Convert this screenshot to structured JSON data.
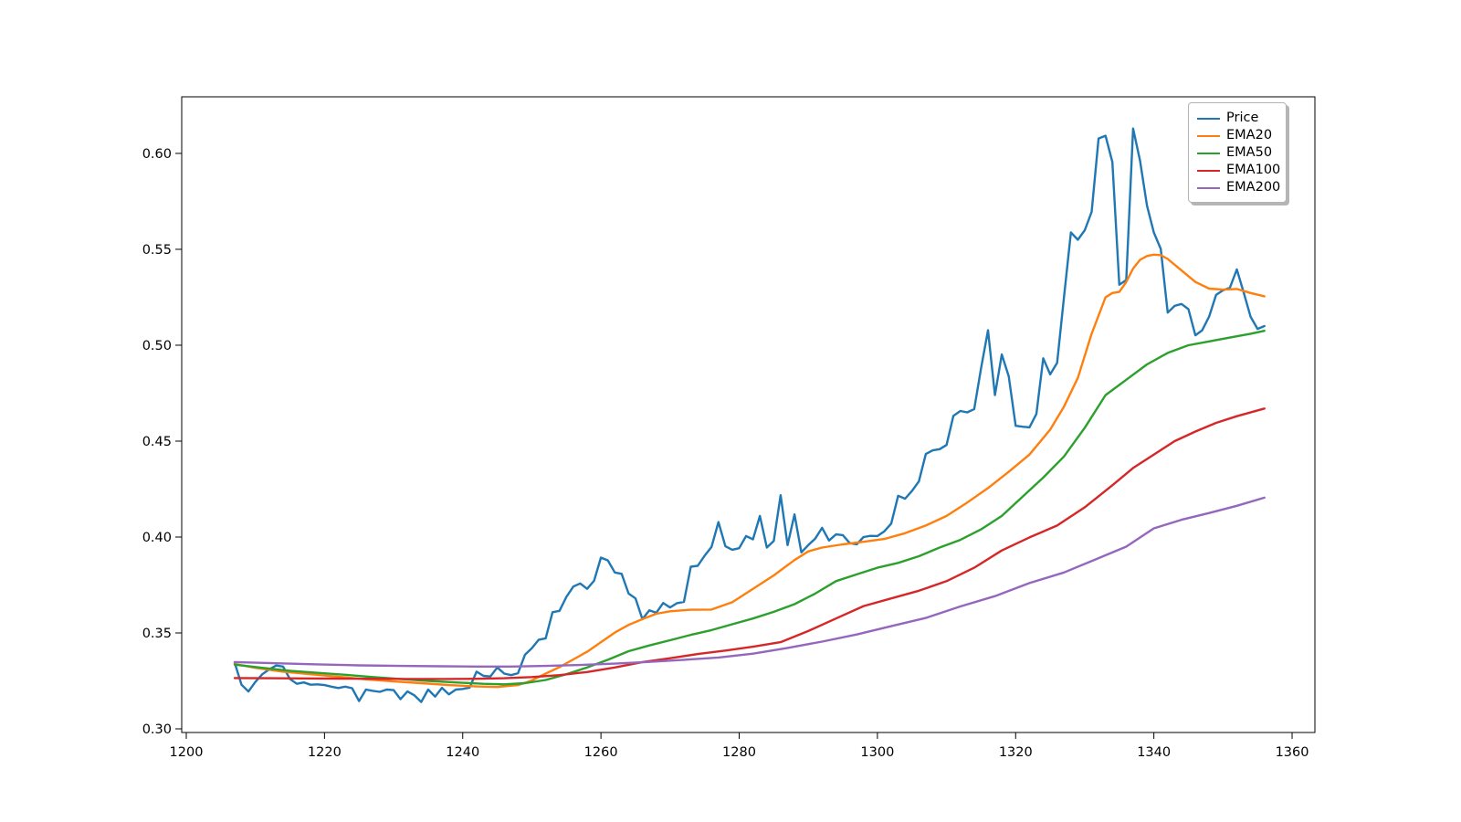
{
  "figure": {
    "background": "#ffffff"
  },
  "legend": {
    "position": "upper right",
    "items": [
      {
        "label": "Price",
        "color": "#1f77b4"
      },
      {
        "label": "EMA20",
        "color": "#ff7f0e"
      },
      {
        "label": "EMA50",
        "color": "#2ca02c"
      },
      {
        "label": "EMA100",
        "color": "#d62728"
      },
      {
        "label": "EMA200",
        "color": "#9467bd"
      }
    ]
  },
  "chart_data": {
    "type": "line",
    "title": "",
    "xlabel": "",
    "ylabel": "",
    "grid": false,
    "legend_position": "upper right",
    "xlim": [
      1199.34,
      1363.3
    ],
    "ylim": [
      0.2981,
      0.6295
    ],
    "x_ticks": [
      1200,
      1220,
      1240,
      1260,
      1280,
      1300,
      1320,
      1340,
      1360
    ],
    "x_tick_labels": [
      "1200",
      "1220",
      "1240",
      "1260",
      "1280",
      "1300",
      "1320",
      "1340",
      "1360"
    ],
    "y_ticks": [
      0.3,
      0.35,
      0.4,
      0.45,
      0.5,
      0.55,
      0.6
    ],
    "y_tick_labels": [
      "0.30",
      "0.35",
      "0.40",
      "0.45",
      "0.50",
      "0.55",
      "0.60"
    ],
    "series": [
      {
        "name": "Price",
        "color": "#1f77b4",
        "x_start": 1207,
        "x_step": 1,
        "y": [
          0.3345,
          0.323,
          0.3195,
          0.3245,
          0.3285,
          0.331,
          0.333,
          0.3325,
          0.326,
          0.3235,
          0.3242,
          0.323,
          0.3232,
          0.3228,
          0.322,
          0.3213,
          0.322,
          0.3212,
          0.3145,
          0.3205,
          0.3198,
          0.3193,
          0.3205,
          0.3202,
          0.3155,
          0.3195,
          0.3175,
          0.314,
          0.3205,
          0.3168,
          0.3214,
          0.318,
          0.3205,
          0.3208,
          0.3215,
          0.3298,
          0.3276,
          0.3273,
          0.332,
          0.3288,
          0.328,
          0.329,
          0.3386,
          0.342,
          0.3465,
          0.3472,
          0.3608,
          0.3615,
          0.3688,
          0.3742,
          0.3758,
          0.373,
          0.3772,
          0.3893,
          0.3878,
          0.3815,
          0.3808,
          0.3705,
          0.368,
          0.3572,
          0.3618,
          0.3605,
          0.3656,
          0.3633,
          0.3655,
          0.3662,
          0.3845,
          0.385,
          0.3903,
          0.3948,
          0.4078,
          0.3952,
          0.3934,
          0.3942,
          0.4005,
          0.3988,
          0.411,
          0.3945,
          0.398,
          0.4218,
          0.3958,
          0.4118,
          0.392,
          0.3958,
          0.3992,
          0.4048,
          0.3982,
          0.4014,
          0.401,
          0.3968,
          0.3962,
          0.4,
          0.4006,
          0.4005,
          0.403,
          0.407,
          0.4215,
          0.42,
          0.424,
          0.429,
          0.4433,
          0.4452,
          0.4458,
          0.448,
          0.4632,
          0.4657,
          0.465,
          0.4667,
          0.488,
          0.5078,
          0.474,
          0.4952,
          0.4838,
          0.458,
          0.4575,
          0.4572,
          0.4642,
          0.4932,
          0.4848,
          0.4908,
          0.525,
          0.5588,
          0.555,
          0.56,
          0.5695,
          0.6078,
          0.6092,
          0.5955,
          0.5315,
          0.534,
          0.613,
          0.5962,
          0.5728,
          0.5588,
          0.5502,
          0.517,
          0.5205,
          0.5215,
          0.5188,
          0.5052,
          0.5078,
          0.515,
          0.5262,
          0.5286,
          0.53,
          0.5395,
          0.5275,
          0.5148,
          0.5085,
          0.51
        ]
      },
      {
        "name": "EMA20",
        "color": "#ff7f0e",
        "x": [
          1207,
          1210,
          1214,
          1218,
          1222,
          1226,
          1230,
          1234,
          1238,
          1242,
          1245,
          1248,
          1250,
          1252,
          1254,
          1256,
          1258,
          1260,
          1262,
          1264,
          1266,
          1268,
          1270,
          1273,
          1276,
          1279,
          1282,
          1285,
          1288,
          1290,
          1292,
          1295,
          1298,
          1301,
          1304,
          1307,
          1310,
          1313,
          1316,
          1319,
          1322,
          1325,
          1327,
          1329,
          1331,
          1333,
          1334,
          1335,
          1336,
          1337,
          1338,
          1339,
          1340,
          1341,
          1342,
          1344,
          1346,
          1348,
          1350,
          1352,
          1354,
          1356
        ],
        "y": [
          0.3338,
          0.3318,
          0.3298,
          0.3285,
          0.3272,
          0.3258,
          0.3247,
          0.3238,
          0.3228,
          0.3221,
          0.3218,
          0.3228,
          0.3252,
          0.3288,
          0.3322,
          0.3362,
          0.3402,
          0.3452,
          0.3502,
          0.3542,
          0.3572,
          0.36,
          0.3613,
          0.3621,
          0.3622,
          0.366,
          0.373,
          0.38,
          0.388,
          0.3925,
          0.3945,
          0.3962,
          0.3975,
          0.399,
          0.402,
          0.406,
          0.411,
          0.418,
          0.4255,
          0.434,
          0.443,
          0.456,
          0.468,
          0.483,
          0.506,
          0.525,
          0.5272,
          0.5278,
          0.533,
          0.54,
          0.5445,
          0.5465,
          0.5472,
          0.547,
          0.545,
          0.539,
          0.533,
          0.5295,
          0.529,
          0.5293,
          0.5272,
          0.5255
        ]
      },
      {
        "name": "EMA50",
        "color": "#2ca02c",
        "x": [
          1207,
          1211,
          1215,
          1219,
          1223,
          1227,
          1231,
          1235,
          1239,
          1243,
          1246,
          1249,
          1252,
          1255,
          1258,
          1261,
          1264,
          1267,
          1270,
          1273,
          1276,
          1279,
          1282,
          1285,
          1288,
          1291,
          1294,
          1297,
          1300,
          1303,
          1306,
          1309,
          1312,
          1315,
          1318,
          1321,
          1324,
          1327,
          1330,
          1333,
          1336,
          1339,
          1342,
          1345,
          1348,
          1351,
          1354,
          1356
        ],
        "y": [
          0.3335,
          0.3318,
          0.3303,
          0.3292,
          0.3282,
          0.327,
          0.326,
          0.325,
          0.3242,
          0.3235,
          0.3232,
          0.3238,
          0.3255,
          0.3285,
          0.332,
          0.336,
          0.3405,
          0.3435,
          0.3462,
          0.349,
          0.3515,
          0.3545,
          0.3575,
          0.361,
          0.365,
          0.3705,
          0.377,
          0.3805,
          0.384,
          0.3865,
          0.39,
          0.3945,
          0.3985,
          0.404,
          0.411,
          0.421,
          0.431,
          0.442,
          0.457,
          0.474,
          0.482,
          0.49,
          0.496,
          0.5,
          0.502,
          0.504,
          0.506,
          0.5075
        ]
      },
      {
        "name": "EMA100",
        "color": "#d62728",
        "x": [
          1207,
          1212,
          1217,
          1222,
          1227,
          1232,
          1237,
          1242,
          1246,
          1250,
          1254,
          1258,
          1262,
          1266,
          1270,
          1274,
          1278,
          1282,
          1286,
          1290,
          1294,
          1298,
          1302,
          1306,
          1310,
          1314,
          1318,
          1322,
          1326,
          1330,
          1334,
          1337,
          1340,
          1343,
          1346,
          1349,
          1352,
          1356
        ],
        "y": [
          0.3265,
          0.3264,
          0.3263,
          0.3262,
          0.3261,
          0.326,
          0.326,
          0.3261,
          0.3264,
          0.327,
          0.328,
          0.3296,
          0.332,
          0.3348,
          0.3368,
          0.339,
          0.3408,
          0.3428,
          0.3452,
          0.351,
          0.3575,
          0.364,
          0.368,
          0.372,
          0.377,
          0.384,
          0.393,
          0.3998,
          0.406,
          0.4155,
          0.427,
          0.436,
          0.443,
          0.45,
          0.455,
          0.4595,
          0.463,
          0.467
        ]
      },
      {
        "name": "EMA200",
        "color": "#9467bd",
        "x": [
          1207,
          1213,
          1219,
          1225,
          1231,
          1237,
          1242,
          1247,
          1252,
          1257,
          1262,
          1267,
          1272,
          1277,
          1282,
          1287,
          1292,
          1297,
          1302,
          1307,
          1312,
          1317,
          1322,
          1327,
          1332,
          1336,
          1340,
          1344,
          1348,
          1352,
          1356
        ],
        "y": [
          0.3348,
          0.3342,
          0.3336,
          0.3331,
          0.3328,
          0.3326,
          0.3325,
          0.3325,
          0.3328,
          0.3333,
          0.334,
          0.3349,
          0.336,
          0.3372,
          0.3392,
          0.3422,
          0.3455,
          0.3492,
          0.3535,
          0.3578,
          0.3638,
          0.3692,
          0.376,
          0.3815,
          0.389,
          0.395,
          0.4045,
          0.409,
          0.4125,
          0.4163,
          0.4205
        ]
      }
    ]
  }
}
